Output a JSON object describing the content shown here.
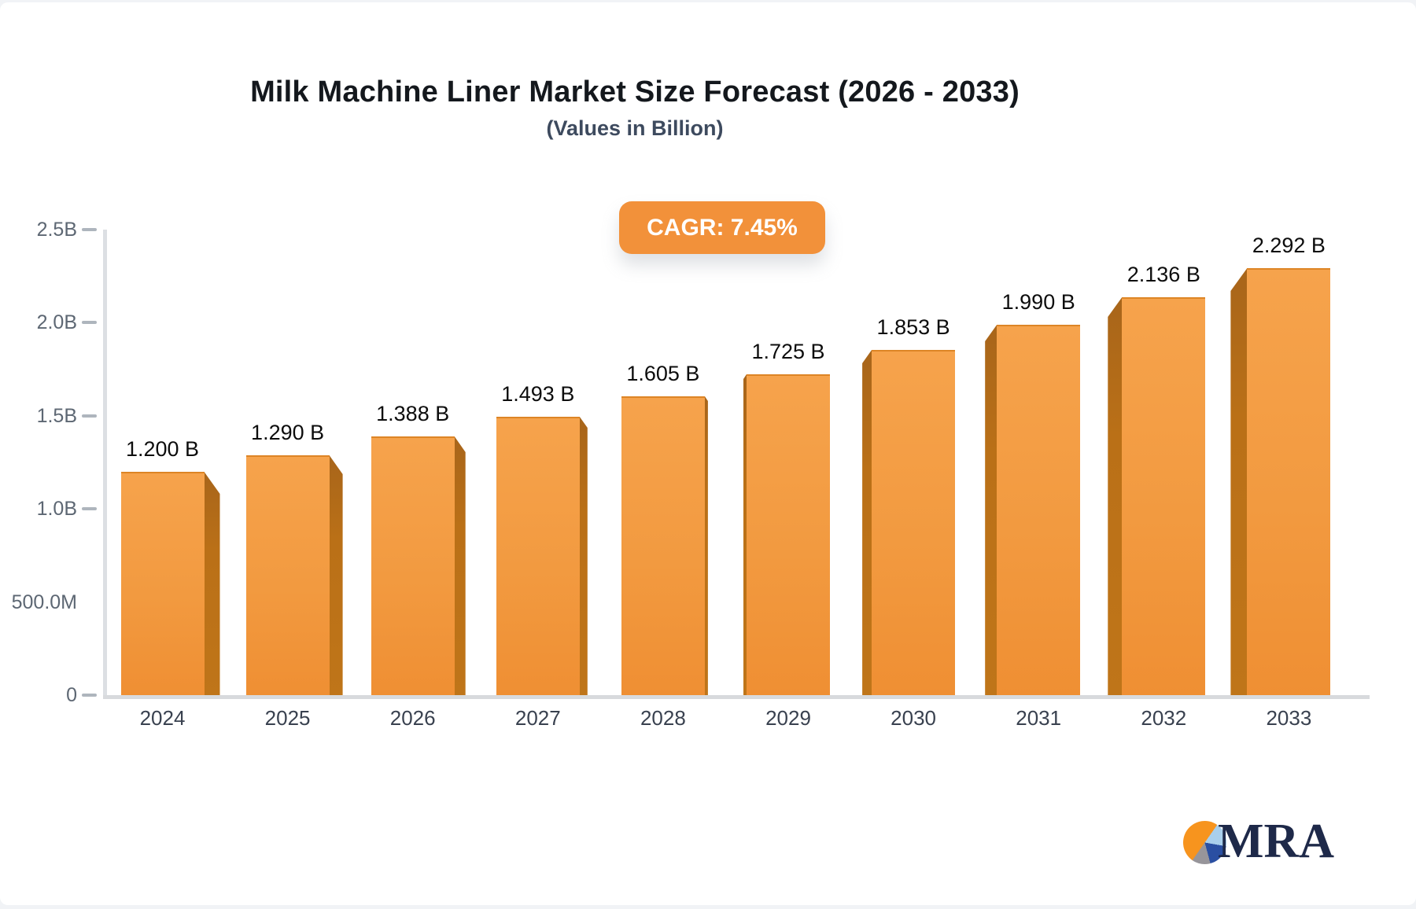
{
  "header": {
    "title": "Milk Machine Liner Market Size Forecast (2026 - 2033)",
    "subtitle": "(Values in Billion)",
    "cagr_label": "CAGR: 7.45%"
  },
  "chart_data": {
    "type": "bar",
    "title": "Milk Machine Liner Market Size Forecast (2026 - 2033)",
    "subtitle": "(Values in Billion)",
    "cagr_percent": 7.45,
    "categories": [
      "2024",
      "2025",
      "2026",
      "2027",
      "2028",
      "2029",
      "2030",
      "2031",
      "2032",
      "2033"
    ],
    "values": [
      1.2,
      1.29,
      1.388,
      1.493,
      1.605,
      1.725,
      1.853,
      1.99,
      2.136,
      2.292
    ],
    "bar_labels": [
      "1.200 B",
      "1.290 B",
      "1.388 B",
      "1.493 B",
      "1.605 B",
      "1.725 B",
      "1.853 B",
      "1.990 B",
      "2.136 B",
      "2.292 B"
    ],
    "unit": "Billion",
    "xlabel": "",
    "ylabel": "",
    "ylim": [
      0,
      2.5
    ],
    "grid": false,
    "legend": false,
    "yticks": [
      {
        "value": 0,
        "label": "0",
        "dash": true
      },
      {
        "value": 0.5,
        "label": "500.0M",
        "dash": false
      },
      {
        "value": 1.0,
        "label": "1.0B",
        "dash": true
      },
      {
        "value": 1.5,
        "label": "1.5B",
        "dash": true
      },
      {
        "value": 2.0,
        "label": "2.0B",
        "dash": true
      },
      {
        "value": 2.5,
        "label": "2.5B",
        "dash": true
      }
    ],
    "colors": {
      "bar_face_top": "#f6a34c",
      "bar_face_bottom": "#ef8f33",
      "bar_side": "#ba7017",
      "badge": "#f2913a",
      "axis": "#dcdfe3",
      "tick_text": "#5d6773",
      "category_text": "#39414f",
      "value_text": "#0d0d0d"
    }
  },
  "logo": {
    "text": "MRA"
  }
}
